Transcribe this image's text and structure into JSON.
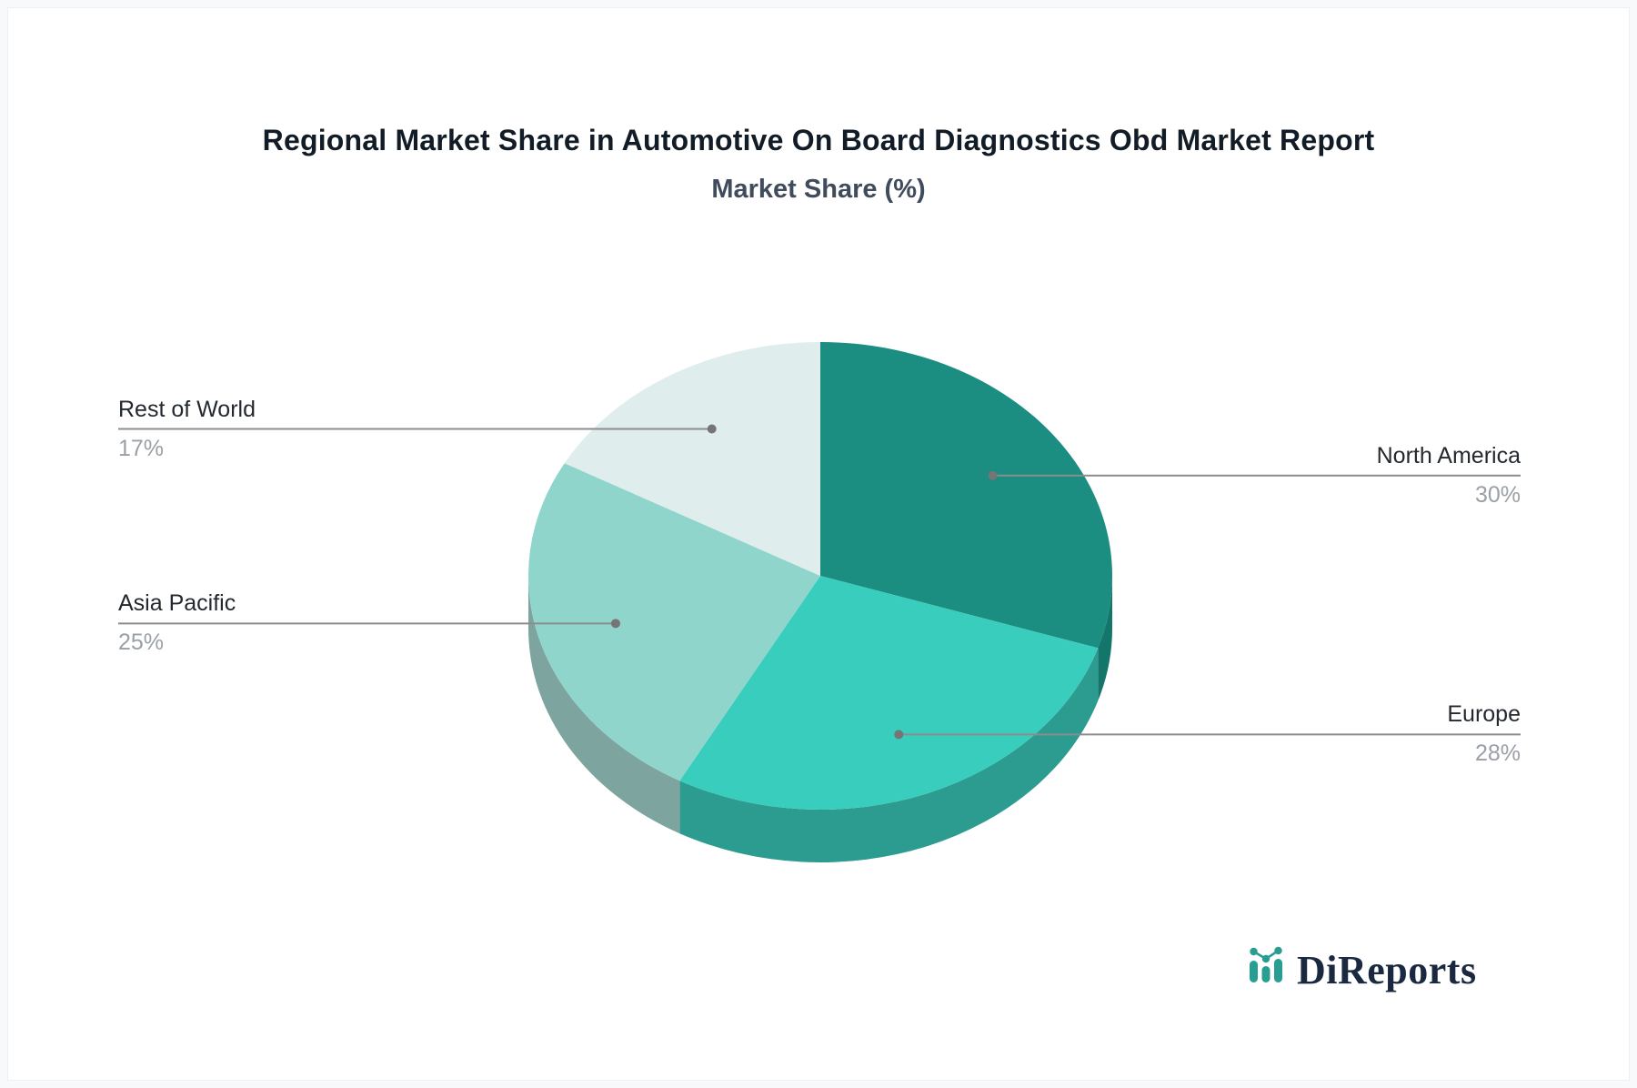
{
  "page": {
    "title": "Regional Market Share in Automotive On Board Diagnostics Obd Market Report",
    "subtitle": "Market Share (%)"
  },
  "chart_data": {
    "type": "pie",
    "title": "Regional Market Share in Automotive On Board Diagnostics Obd Market Report",
    "subtitle": "Market Share (%)",
    "unit": "%",
    "effect": "3d",
    "start_angle": "12-o-clock",
    "direction": "clockwise",
    "legend_position": "callout-labels",
    "slices": [
      {
        "label": "North America",
        "value": 30,
        "pct_label": "30%",
        "color": "#1b8e81",
        "side_color": "#14756b"
      },
      {
        "label": "Europe",
        "value": 28,
        "pct_label": "28%",
        "color": "#39cdbe",
        "side_color": "#2d9c90"
      },
      {
        "label": "Asia Pacific",
        "value": 25,
        "pct_label": "25%",
        "color": "#8fd5cb",
        "side_color": "#7da49e"
      },
      {
        "label": "Rest of World",
        "value": 17,
        "pct_label": "17%",
        "color": "#dfeeec",
        "side_color": "#b9cecb"
      }
    ],
    "leader_line_color": "#8c8c8c",
    "leader_dot_color": "#757575",
    "label_color": "#24292f",
    "pct_color": "#9aa0a6"
  },
  "logo": {
    "text": "DiReports",
    "icon": "bar-line-chart-icon",
    "icon_color": "#2a9d92",
    "text_color": "#1b2940"
  }
}
